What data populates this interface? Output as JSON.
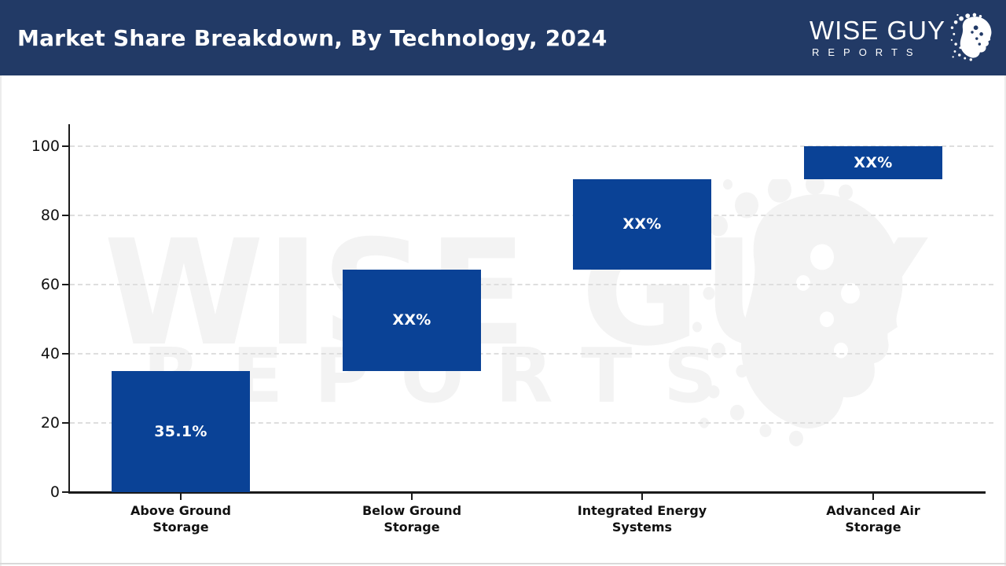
{
  "header": {
    "title": "Market Share Breakdown, By Technology, 2024",
    "logo": {
      "line1": "WISE GUY",
      "line2": "REPORTS"
    }
  },
  "watermark": {
    "line1": "WISE GUY",
    "line2": "REPORTS"
  },
  "colors": {
    "header_bg": "#223a66",
    "bar_fill": "#0a4296",
    "bar_label": "#ffffff",
    "axis": "#1a1a1a",
    "grid": "#dedede",
    "watermark": "#f3f3f3"
  },
  "chart_data": {
    "type": "bar",
    "subtype": "floating-waterfall",
    "title": "Market Share Breakdown, By Technology, 2024",
    "xlabel": "",
    "ylabel": "",
    "unit": "%",
    "ylim": [
      0,
      106
    ],
    "yticks": [
      0,
      20,
      40,
      60,
      80,
      100
    ],
    "grid": "horizontal-dashed",
    "legend": "none",
    "categories": [
      "Above Ground Storage",
      "Below Ground Storage",
      "Integrated Energy Systems",
      "Advanced Air Storage"
    ],
    "category_lines": [
      [
        "Above Ground",
        "Storage"
      ],
      [
        "Below Ground",
        "Storage"
      ],
      [
        "Integrated Energy",
        "Systems"
      ],
      [
        "Advanced Air",
        "Storage"
      ]
    ],
    "bars": [
      {
        "category": "Above Ground Storage",
        "start": 0,
        "end": 35.1,
        "value": 35.1,
        "label": "35.1%"
      },
      {
        "category": "Below Ground Storage",
        "start": 35.1,
        "end": 64.3,
        "value": 29.2,
        "label": "XX%"
      },
      {
        "category": "Integrated Energy Systems",
        "start": 64.3,
        "end": 90.5,
        "value": 26.2,
        "label": "XX%"
      },
      {
        "category": "Advanced Air Storage",
        "start": 90.5,
        "end": 100,
        "value": 9.5,
        "label": "XX%"
      }
    ]
  }
}
